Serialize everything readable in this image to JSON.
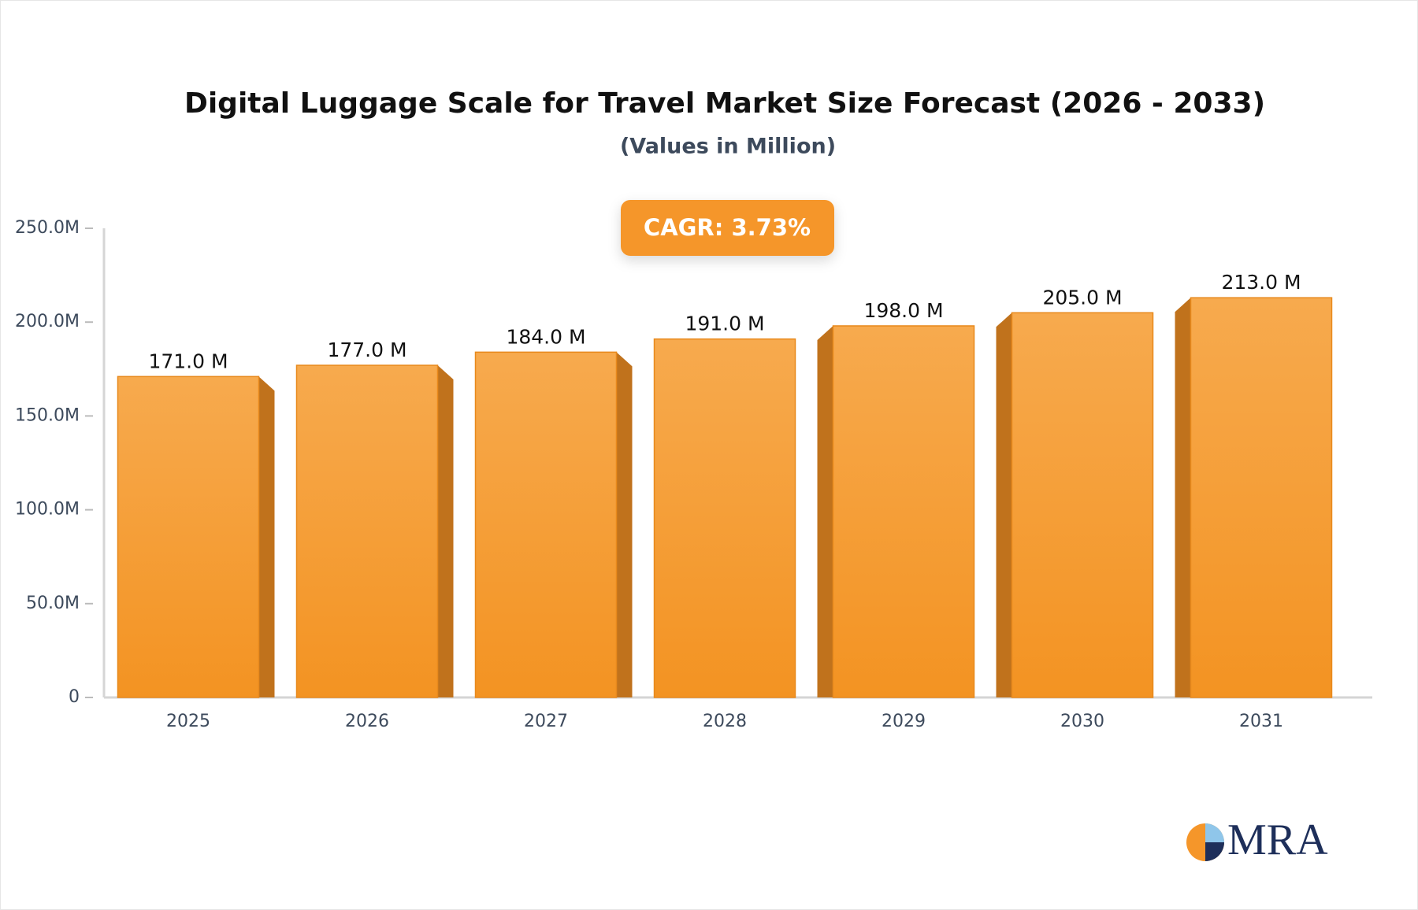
{
  "chart_data": {
    "type": "bar",
    "title": "Digital Luggage Scale for Travel Market Size Forecast (2026 - 2033)",
    "subtitle": "(Values in Million)",
    "annotation": "CAGR: 3.73%",
    "logo": "MRA",
    "categories": [
      "2025",
      "2026",
      "2027",
      "2028",
      "2029",
      "2030",
      "2031"
    ],
    "values": [
      171,
      177,
      184,
      191,
      198,
      205,
      213
    ],
    "value_labels": [
      "171.0 M",
      "177.0 M",
      "184.0 M",
      "191.0 M",
      "198.0 M",
      "205.0 M",
      "213.0 M"
    ],
    "color": "#f59a2e",
    "ylim": [
      0,
      250
    ],
    "yticks": [
      0,
      {
        "value": 50,
        "label": "50.0M"
      },
      {
        "value": 100,
        "label": "100.0M"
      },
      {
        "value": 150,
        "label": "150.0M"
      },
      {
        "value": 200,
        "label": "200.0M"
      },
      {
        "value": 250,
        "label": "250.0M"
      }
    ],
    "grid": false
  }
}
